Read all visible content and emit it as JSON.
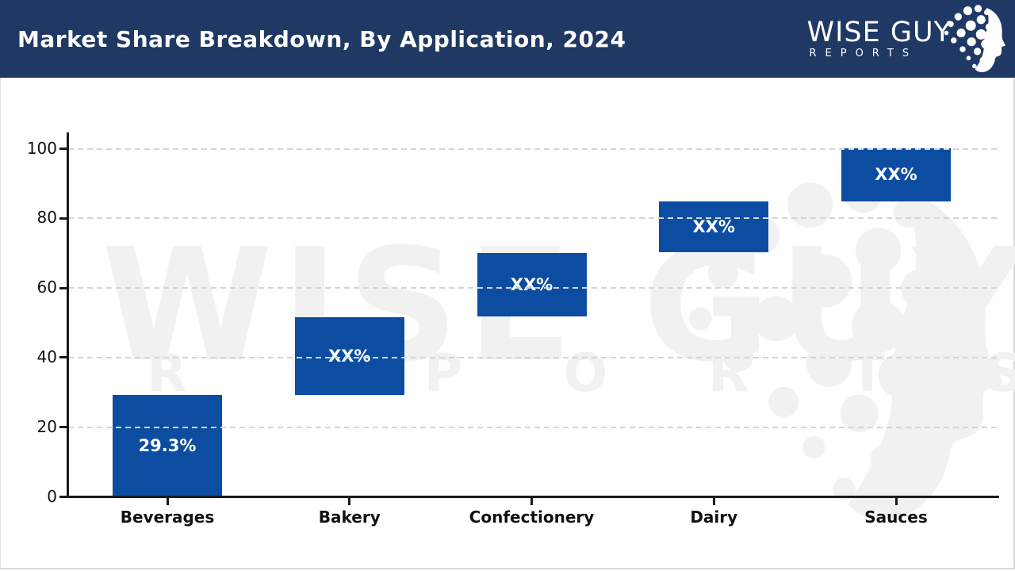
{
  "header": {
    "title": "Market Share Breakdown, By Application, 2024",
    "bg_color": "#203864",
    "logo": {
      "line1": "WISE GUY",
      "line2": "REPORTS"
    }
  },
  "watermark": {
    "line1": "WISE GUY",
    "line2": "R E P O R T S"
  },
  "chart_data": {
    "type": "bar",
    "subtype": "waterfall",
    "title": "Market Share Breakdown, By Application, 2024",
    "categories": [
      "Beverages",
      "Bakery",
      "Confectionery",
      "Dairy",
      "Sauces"
    ],
    "bars": [
      {
        "category": "Beverages",
        "start": 0,
        "end": 29.3,
        "label": "29.3%"
      },
      {
        "category": "Bakery",
        "start": 29.3,
        "end": 51.6,
        "label": "XX%"
      },
      {
        "category": "Confectionery",
        "start": 51.8,
        "end": 70.0,
        "label": "XX%"
      },
      {
        "category": "Dairy",
        "start": 70.2,
        "end": 84.8,
        "label": "XX%"
      },
      {
        "category": "Sauces",
        "start": 84.8,
        "end": 100.2,
        "label": "XX%"
      }
    ],
    "yticks": [
      "0",
      "20",
      "40",
      "60",
      "80",
      "100"
    ],
    "ylim": [
      0,
      105
    ],
    "xlabel": "",
    "ylabel": "",
    "grid": true,
    "grid_style": "dashed",
    "legend": false,
    "bar_color": "#0C4DA2",
    "value_label_color": "#ffffff",
    "grid_color": "#d4d4d4",
    "axis_color": "#1a1a1a"
  }
}
